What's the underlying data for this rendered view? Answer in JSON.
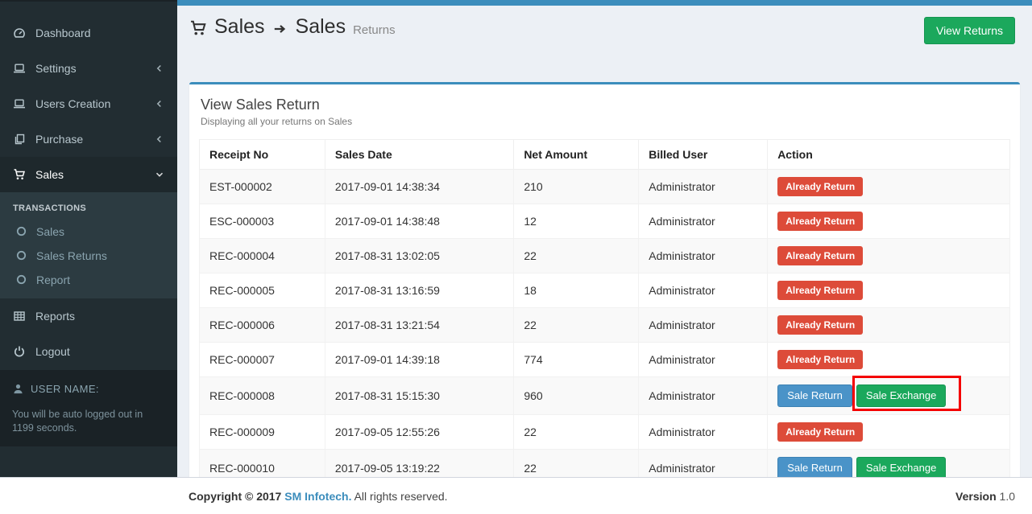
{
  "sidebar": {
    "items": [
      {
        "label": "Dashboard"
      },
      {
        "label": "Settings"
      },
      {
        "label": "Users Creation"
      },
      {
        "label": "Purchase"
      },
      {
        "label": "Sales"
      }
    ],
    "submenu_header": "TRANSACTIONS",
    "submenu_items": [
      {
        "label": "Sales"
      },
      {
        "label": "Sales Returns"
      },
      {
        "label": "Report"
      }
    ],
    "lower_items": [
      {
        "label": "Reports"
      },
      {
        "label": "Logout"
      }
    ],
    "user_panel": {
      "label": "USER NAME:",
      "note": "You will be auto logged out in 1199 seconds."
    }
  },
  "header": {
    "title_primary": "Sales",
    "title_secondary": "Sales",
    "title_sub": "Returns",
    "action_button": "View Returns"
  },
  "panel": {
    "title": "View Sales Return",
    "subtitle": "Displaying all your returns on Sales"
  },
  "table": {
    "columns": [
      "Receipt No",
      "Sales Date",
      "Net Amount",
      "Billed User",
      "Action"
    ],
    "rows": [
      {
        "receipt_no": "EST-000002",
        "sales_date": "2017-09-01 14:38:34",
        "net_amount": "210",
        "billed_user": "Administrator",
        "actions": [
          {
            "label": "Already Return",
            "type": "danger"
          }
        ]
      },
      {
        "receipt_no": "ESC-000003",
        "sales_date": "2017-09-01 14:38:48",
        "net_amount": "12",
        "billed_user": "Administrator",
        "actions": [
          {
            "label": "Already Return",
            "type": "danger"
          }
        ]
      },
      {
        "receipt_no": "REC-000004",
        "sales_date": "2017-08-31 13:02:05",
        "net_amount": "22",
        "billed_user": "Administrator",
        "actions": [
          {
            "label": "Already Return",
            "type": "danger"
          }
        ]
      },
      {
        "receipt_no": "REC-000005",
        "sales_date": "2017-08-31 13:16:59",
        "net_amount": "18",
        "billed_user": "Administrator",
        "actions": [
          {
            "label": "Already Return",
            "type": "danger"
          }
        ]
      },
      {
        "receipt_no": "REC-000006",
        "sales_date": "2017-08-31 13:21:54",
        "net_amount": "22",
        "billed_user": "Administrator",
        "actions": [
          {
            "label": "Already Return",
            "type": "danger"
          }
        ]
      },
      {
        "receipt_no": "REC-000007",
        "sales_date": "2017-09-01 14:39:18",
        "net_amount": "774",
        "billed_user": "Administrator",
        "actions": [
          {
            "label": "Already Return",
            "type": "danger"
          }
        ]
      },
      {
        "receipt_no": "REC-000008",
        "sales_date": "2017-08-31 15:15:30",
        "net_amount": "960",
        "billed_user": "Administrator",
        "actions": [
          {
            "label": "Sale Return",
            "type": "primary"
          },
          {
            "label": "Sale Exchange",
            "type": "success",
            "highlighted": true
          }
        ]
      },
      {
        "receipt_no": "REC-000009",
        "sales_date": "2017-09-05 12:55:26",
        "net_amount": "22",
        "billed_user": "Administrator",
        "actions": [
          {
            "label": "Already Return",
            "type": "danger"
          }
        ]
      },
      {
        "receipt_no": "REC-000010",
        "sales_date": "2017-09-05 13:19:22",
        "net_amount": "22",
        "billed_user": "Administrator",
        "actions": [
          {
            "label": "Sale Return",
            "type": "primary"
          },
          {
            "label": "Sale Exchange",
            "type": "success"
          }
        ]
      }
    ]
  },
  "footer": {
    "copyright_prefix": "Copyright © 2017",
    "company": "SM Infotech.",
    "copyright_suffix": "All rights reserved.",
    "version_label": "Version",
    "version_value": "1.0"
  },
  "colors": {
    "accent_blue": "#3c8dbc",
    "success_green": "#1ba85c",
    "danger_red": "#dd4b39",
    "primary_blue": "#4a93c8",
    "annotation_red": "#f40000",
    "sidebar_dark": "#222d32",
    "content_bg": "#ecf0f5"
  }
}
